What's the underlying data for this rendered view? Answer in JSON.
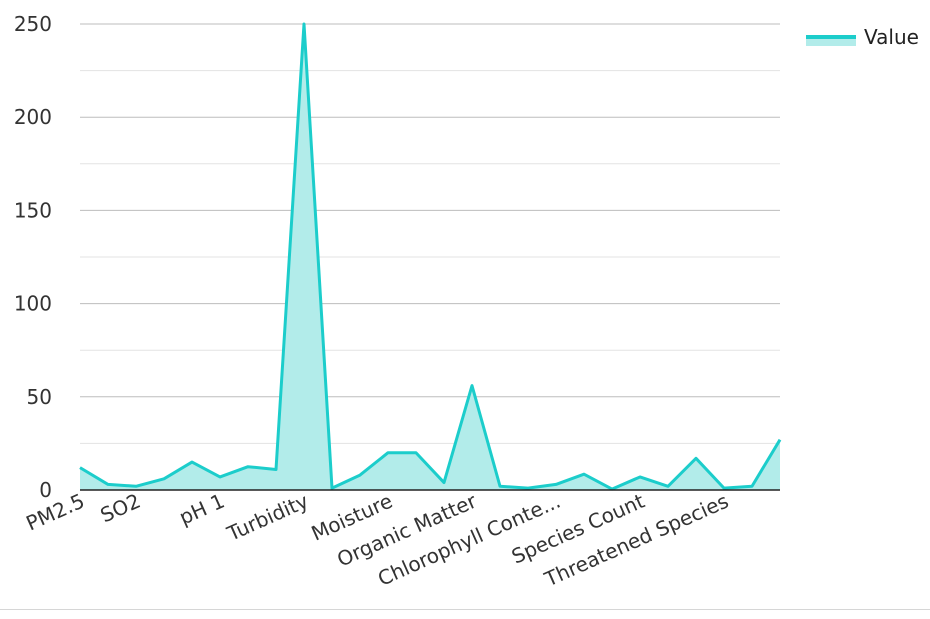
{
  "chart_data": {
    "type": "area",
    "categories": [
      "PM2.5",
      "",
      "SO2",
      "",
      "",
      "pH 1",
      "",
      "",
      "Turbidity",
      "",
      "",
      "Moisture",
      "",
      "",
      "Organic Matter",
      "",
      "",
      "Chlorophyll Conte...",
      "",
      "",
      "Species Count",
      "",
      "",
      "Threatened Species",
      "",
      ""
    ],
    "series": [
      {
        "name": "Value",
        "values": [
          12,
          3,
          2,
          6,
          15,
          7,
          12.5,
          11,
          250,
          1,
          8,
          20,
          20,
          4,
          56,
          2,
          1,
          3,
          8.5,
          0.5,
          7,
          2,
          17,
          1,
          2,
          27
        ]
      }
    ],
    "ylim": [
      0,
      250
    ],
    "yticks": [
      0,
      50,
      100,
      150,
      200,
      250
    ],
    "xlabel": "",
    "ylabel": "",
    "grid": true,
    "legend_position": "top-right",
    "colors": {
      "line": "#1ccdcb",
      "fill": "#b2ecea",
      "grid": "#c8c8c8",
      "axis": "#222222"
    }
  }
}
